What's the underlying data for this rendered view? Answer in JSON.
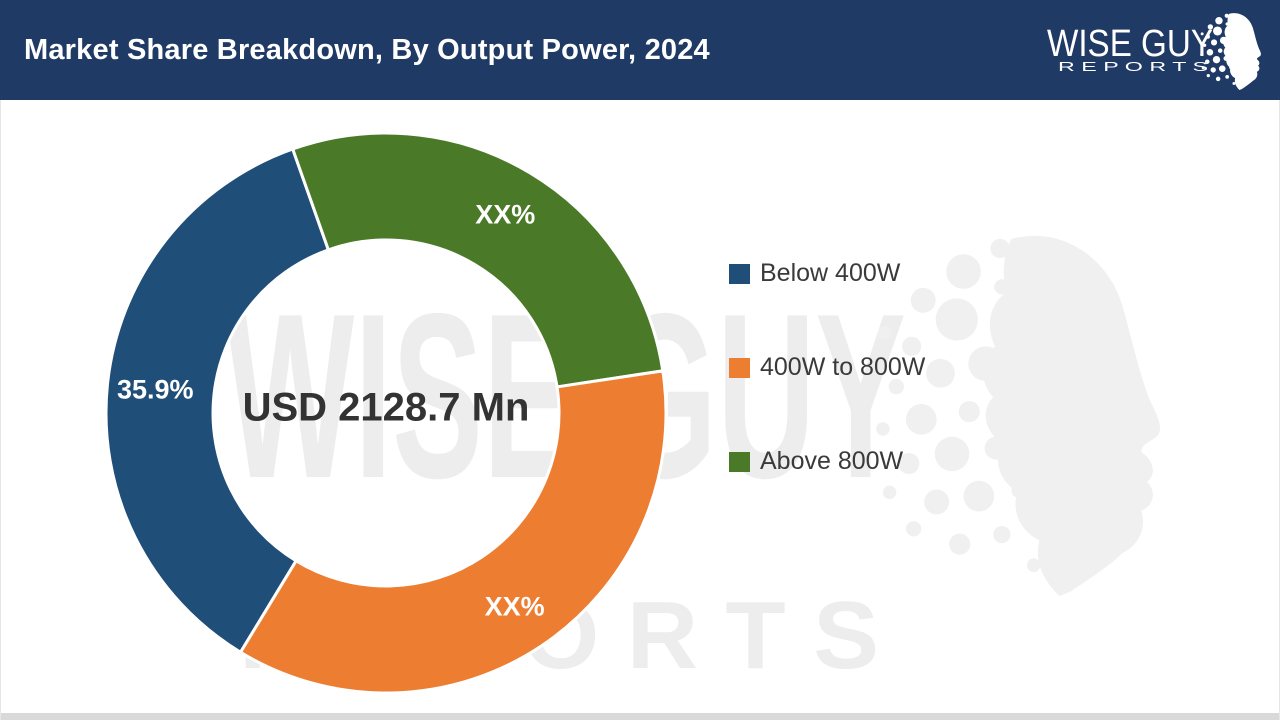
{
  "header": {
    "title": "Market Share Breakdown, By Output Power, 2024",
    "logo": {
      "line1": "WISE GUY",
      "line2": "R E P O R T S"
    }
  },
  "watermark": {
    "line1": "WISE GUY",
    "line2": "R E P O R T S"
  },
  "chart_data": {
    "type": "donut",
    "title": "Market Share Breakdown, By Output Power, 2024",
    "center_label": "USD 2128.7 Mn",
    "start_angle_deg": 211.3,
    "draw_order": [
      0,
      2,
      1
    ],
    "legend_position": "right-middle",
    "segments": [
      {
        "label": "Below 400W",
        "pct": 35.9,
        "display": "35.9%",
        "color": "#1F4E79"
      },
      {
        "label": "400W to 800W",
        "pct": 36.1,
        "display": "XX%",
        "color": "#ED7D31"
      },
      {
        "label": "Above 800W",
        "pct": 28.0,
        "display": "XX%",
        "color": "#4A7A28"
      }
    ]
  },
  "colors": {
    "header_bg": "#203A66",
    "center_text": "#333333",
    "legend_text": "#3A3A3A",
    "watermark": "#EDEDED",
    "bottom_strip": "#D9D9D9"
  }
}
